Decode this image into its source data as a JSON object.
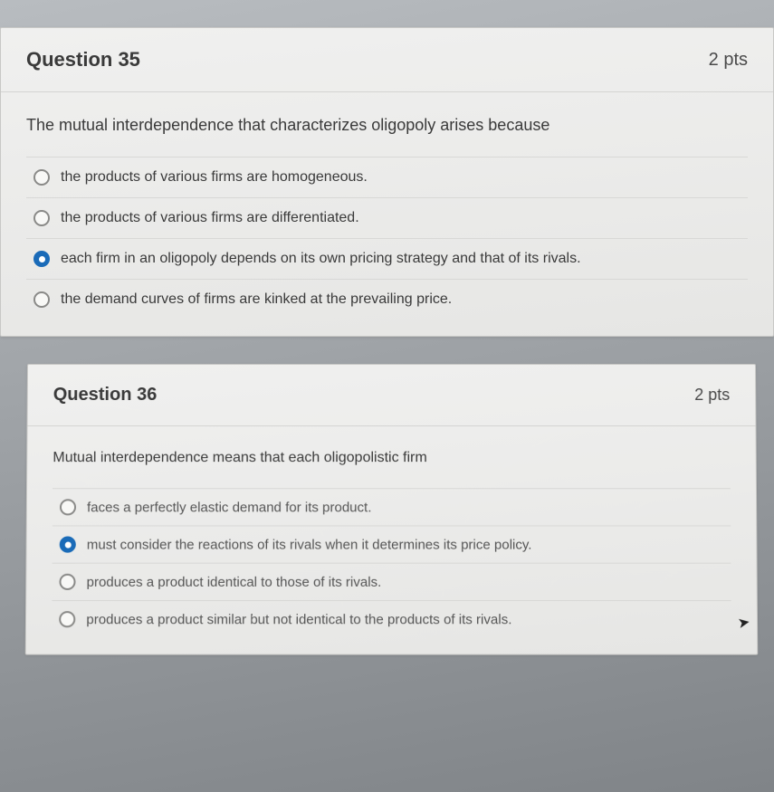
{
  "colors": {
    "selected_radio": "#1a6bb8",
    "unselected_radio_border": "#8a8a88",
    "card_bg": "#ededeb",
    "divider": "#d8d8d6",
    "text_primary": "#3a3a3a"
  },
  "questions": [
    {
      "title": "Question 35",
      "pts": "2 pts",
      "prompt": "The mutual interdependence that characterizes oligopoly arises because",
      "options": [
        {
          "text": "the products of various firms are homogeneous.",
          "selected": false
        },
        {
          "text": "the products of various firms are differentiated.",
          "selected": false
        },
        {
          "text": "each firm in an oligopoly depends on its own pricing strategy and that of its rivals.",
          "selected": true
        },
        {
          "text": "the demand curves of firms are kinked at the prevailing price.",
          "selected": false
        }
      ]
    },
    {
      "title": "Question 36",
      "pts": "2 pts",
      "prompt": "Mutual interdependence means that each oligopolistic firm",
      "options": [
        {
          "text": "faces a perfectly elastic demand for its product.",
          "selected": false
        },
        {
          "text": "must consider the reactions of its rivals when it determines its price policy.",
          "selected": true
        },
        {
          "text": "produces a product identical to those of its rivals.",
          "selected": false
        },
        {
          "text": "produces a product similar but not identical to the products of its rivals.",
          "selected": false
        }
      ]
    }
  ]
}
